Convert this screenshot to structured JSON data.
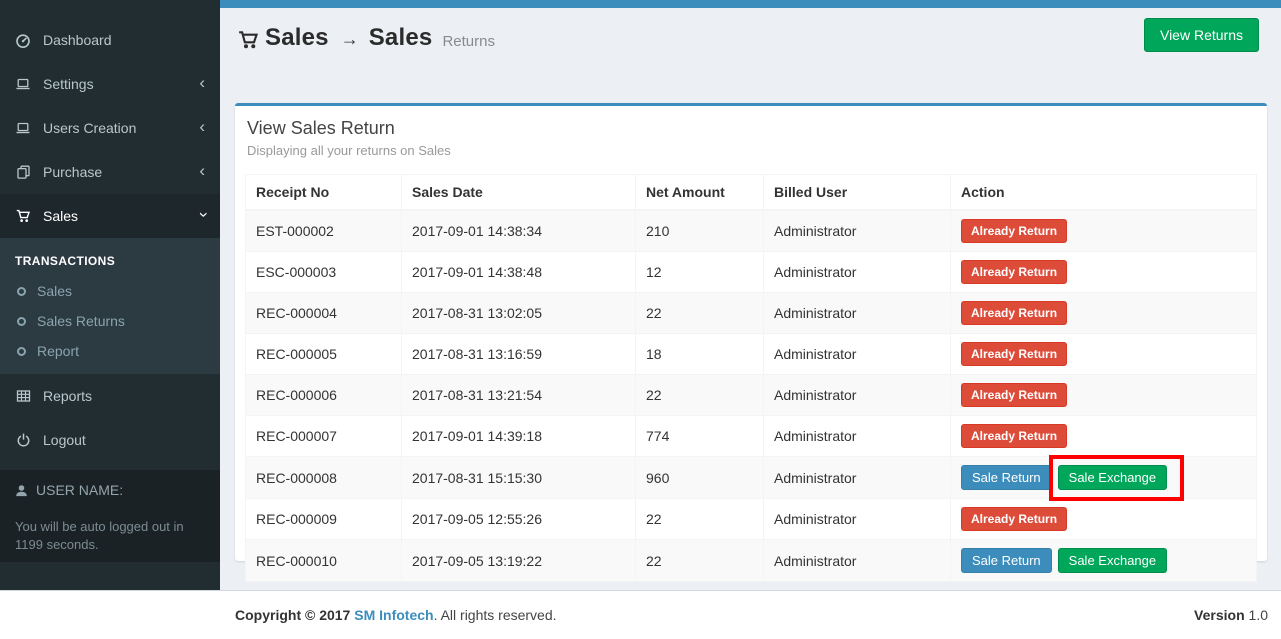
{
  "sidebar": {
    "items": [
      {
        "label": "Dashboard",
        "icon": "dashboard-icon",
        "active": false
      },
      {
        "label": "Settings",
        "icon": "laptop-icon",
        "chevron": "left",
        "active": false
      },
      {
        "label": "Users Creation",
        "icon": "laptop-icon",
        "chevron": "left",
        "active": false
      },
      {
        "label": "Purchase",
        "icon": "copy-icon",
        "chevron": "left",
        "active": false
      },
      {
        "label": "Sales",
        "icon": "cart-icon",
        "chevron": "down",
        "active": true
      }
    ],
    "submenu_header": "TRANSACTIONS",
    "submenu": [
      {
        "label": "Sales"
      },
      {
        "label": "Sales Returns"
      },
      {
        "label": "Report"
      }
    ],
    "items_after": [
      {
        "label": "Reports",
        "icon": "table-icon"
      },
      {
        "label": "Logout",
        "icon": "power-icon"
      }
    ],
    "user_label": "USER NAME:",
    "auto_logout_line1": "You will be auto logged out in",
    "auto_logout_line2": "1199 seconds."
  },
  "header": {
    "title_primary": "Sales",
    "arrow": "→",
    "title_secondary": "Sales",
    "title_small": "Returns",
    "view_returns_button": "View Returns"
  },
  "panel": {
    "title": "View Sales Return",
    "subtitle": "Displaying all your returns on Sales"
  },
  "table": {
    "columns": [
      "Receipt No",
      "Sales Date",
      "Net Amount",
      "Billed User",
      "Action"
    ],
    "rows": [
      {
        "receipt_no": "EST-000002",
        "sales_date": "2017-09-01 14:38:34",
        "net_amount": "210",
        "billed_user": "Administrator",
        "actions": [
          {
            "type": "already_return"
          }
        ]
      },
      {
        "receipt_no": "ESC-000003",
        "sales_date": "2017-09-01 14:38:48",
        "net_amount": "12",
        "billed_user": "Administrator",
        "actions": [
          {
            "type": "already_return"
          }
        ]
      },
      {
        "receipt_no": "REC-000004",
        "sales_date": "2017-08-31 13:02:05",
        "net_amount": "22",
        "billed_user": "Administrator",
        "actions": [
          {
            "type": "already_return"
          }
        ]
      },
      {
        "receipt_no": "REC-000005",
        "sales_date": "2017-08-31 13:16:59",
        "net_amount": "18",
        "billed_user": "Administrator",
        "actions": [
          {
            "type": "already_return"
          }
        ]
      },
      {
        "receipt_no": "REC-000006",
        "sales_date": "2017-08-31 13:21:54",
        "net_amount": "22",
        "billed_user": "Administrator",
        "actions": [
          {
            "type": "already_return"
          }
        ]
      },
      {
        "receipt_no": "REC-000007",
        "sales_date": "2017-09-01 14:39:18",
        "net_amount": "774",
        "billed_user": "Administrator",
        "actions": [
          {
            "type": "already_return"
          }
        ]
      },
      {
        "receipt_no": "REC-000008",
        "sales_date": "2017-08-31 15:15:30",
        "net_amount": "960",
        "billed_user": "Administrator",
        "actions": [
          {
            "type": "sale_return"
          },
          {
            "type": "sale_exchange",
            "highlighted": true
          }
        ]
      },
      {
        "receipt_no": "REC-000009",
        "sales_date": "2017-09-05 12:55:26",
        "net_amount": "22",
        "billed_user": "Administrator",
        "actions": [
          {
            "type": "already_return"
          }
        ]
      },
      {
        "receipt_no": "REC-000010",
        "sales_date": "2017-09-05 13:19:22",
        "net_amount": "22",
        "billed_user": "Administrator",
        "actions": [
          {
            "type": "sale_return"
          },
          {
            "type": "sale_exchange"
          }
        ]
      }
    ]
  },
  "action_labels": {
    "already_return": "Already Return",
    "sale_return": "Sale Return",
    "sale_exchange": "Sale Exchange"
  },
  "footer": {
    "copyright_prefix": "Copyright © 2017",
    "company": "SM Infotech",
    "copyright_suffix": ". All rights reserved.",
    "version_label": "Version",
    "version_value": "1.0"
  },
  "icons": {
    "dashboard-icon": "gauge",
    "laptop-icon": "laptop",
    "copy-icon": "two-sheets",
    "cart-icon": "shopping-cart",
    "circle-o-icon": "ring",
    "table-icon": "grid",
    "power-icon": "power",
    "user-icon": "person",
    "chevron-left-icon": "‹",
    "chevron-down-icon": "⌄",
    "breadcrumb-arrow-icon": "→"
  },
  "colors": {
    "topbar_blue": "#3c8dbc",
    "sidebar_bg": "#222d32",
    "sidebar_active_bg": "#1e282c",
    "submenu_bg": "#2c3b41",
    "user_block_bg": "#1a2226",
    "content_bg": "#ecf0f5",
    "green": "#00a65a",
    "red": "#dd4b39",
    "blue": "#3c8dbc",
    "highlight_red": "#ff0000"
  }
}
